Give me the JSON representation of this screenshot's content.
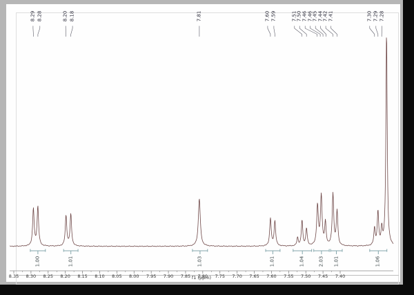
{
  "frame": {
    "backdrop_color": "#0b0b0b",
    "frame_color": "#b6b6b6",
    "page_color": "#fefefe"
  },
  "chart_data": {
    "type": "line",
    "kind": "1H NMR spectrum",
    "xlabel": "f1 (ppm)",
    "x_min": 7.4,
    "x_max": 8.35,
    "tick_step": 0.05,
    "tick_labels": [
      "8.35",
      "8.30",
      "8.25",
      "8.20",
      "8.15",
      "8.10",
      "8.05",
      "8.00",
      "7.95",
      "7.90",
      "7.85",
      "7.80",
      "7.75",
      "7.70",
      "7.65",
      "7.60",
      "7.55",
      "7.50",
      "7.45",
      "7.40"
    ],
    "colors": {
      "trace": "#6e4747",
      "integral": "#84a7ac",
      "leader": "#5a5a66",
      "axis": "#8a8a8a",
      "tick": "#777777"
    },
    "peak_labels": [
      {
        "text": "8.29",
        "ppm": 8.293,
        "label_ppm": 8.294
      },
      {
        "text": "8.28",
        "ppm": 8.28,
        "label_ppm": 8.274
      },
      {
        "text": "8.20",
        "ppm": 8.198,
        "label_ppm": 8.199
      },
      {
        "text": "8.18",
        "ppm": 8.184,
        "label_ppm": 8.179
      },
      {
        "text": "7.81",
        "ppm": 7.81,
        "label_ppm": 7.81
      },
      {
        "text": "7.60",
        "ppm": 7.603,
        "label_ppm": 7.611
      },
      {
        "text": "7.59",
        "ppm": 7.59,
        "label_ppm": 7.593
      },
      {
        "text": "7.51",
        "ppm": 7.511,
        "label_ppm": 7.533
      },
      {
        "text": "7.50",
        "ppm": 7.498,
        "label_ppm": 7.518
      },
      {
        "text": "7.46",
        "ppm": 7.467,
        "label_ppm": 7.502
      },
      {
        "text": "7.46",
        "ppm": 7.458,
        "label_ppm": 7.487
      },
      {
        "text": "7.45",
        "ppm": 7.45,
        "label_ppm": 7.472
      },
      {
        "text": "7.44",
        "ppm": 7.441,
        "label_ppm": 7.457
      },
      {
        "text": "7.42",
        "ppm": 7.421,
        "label_ppm": 7.442
      },
      {
        "text": "7.41",
        "ppm": 7.409,
        "label_ppm": 7.427
      },
      {
        "text": "7.30",
        "ppm": 7.3,
        "label_ppm": 7.314
      },
      {
        "text": "7.29",
        "ppm": 7.29,
        "label_ppm": 7.296
      },
      {
        "text": "7.28",
        "ppm": 7.279,
        "label_ppm": 7.278
      }
    ],
    "peaks": [
      {
        "ppm": 8.293,
        "intensity": 54,
        "width": 1.3
      },
      {
        "ppm": 8.28,
        "intensity": 57,
        "width": 1.3
      },
      {
        "ppm": 8.198,
        "intensity": 44,
        "width": 1.3
      },
      {
        "ppm": 8.184,
        "intensity": 46,
        "width": 1.3
      },
      {
        "ppm": 7.81,
        "intensity": 69,
        "width": 1.7
      },
      {
        "ppm": 7.603,
        "intensity": 40,
        "width": 1.3
      },
      {
        "ppm": 7.59,
        "intensity": 36,
        "width": 1.3
      },
      {
        "ppm": 7.524,
        "intensity": 12,
        "width": 1.2
      },
      {
        "ppm": 7.511,
        "intensity": 37,
        "width": 1.2
      },
      {
        "ppm": 7.498,
        "intensity": 25,
        "width": 1.2
      },
      {
        "ppm": 7.466,
        "intensity": 58,
        "width": 1.4
      },
      {
        "ppm": 7.455,
        "intensity": 72,
        "width": 1.4
      },
      {
        "ppm": 7.443,
        "intensity": 33,
        "width": 1.2
      },
      {
        "ppm": 7.421,
        "intensity": 75,
        "width": 1.3
      },
      {
        "ppm": 7.409,
        "intensity": 50,
        "width": 1.3
      },
      {
        "ppm": 7.3,
        "intensity": 25,
        "width": 1.2
      },
      {
        "ppm": 7.29,
        "intensity": 49,
        "width": 1.2
      },
      {
        "ppm": 7.279,
        "intensity": 24,
        "width": 1.2
      },
      {
        "ppm": 7.265,
        "intensity": 312,
        "width": 1.1
      }
    ],
    "integrals": [
      {
        "value": "1.00",
        "from": 8.302,
        "to": 8.258
      },
      {
        "value": "1.01",
        "from": 8.205,
        "to": 8.163
      },
      {
        "value": "1.03",
        "from": 7.83,
        "to": 7.786
      },
      {
        "value": "1.01",
        "from": 7.617,
        "to": 7.575
      },
      {
        "value": "1.04",
        "from": 7.537,
        "to": 7.483
      },
      {
        "value": "2.03",
        "from": 7.477,
        "to": 7.432
      },
      {
        "value": "1.01",
        "from": 7.428,
        "to": 7.394
      },
      {
        "value": "1.06",
        "from": 7.314,
        "to": 7.264
      }
    ]
  }
}
